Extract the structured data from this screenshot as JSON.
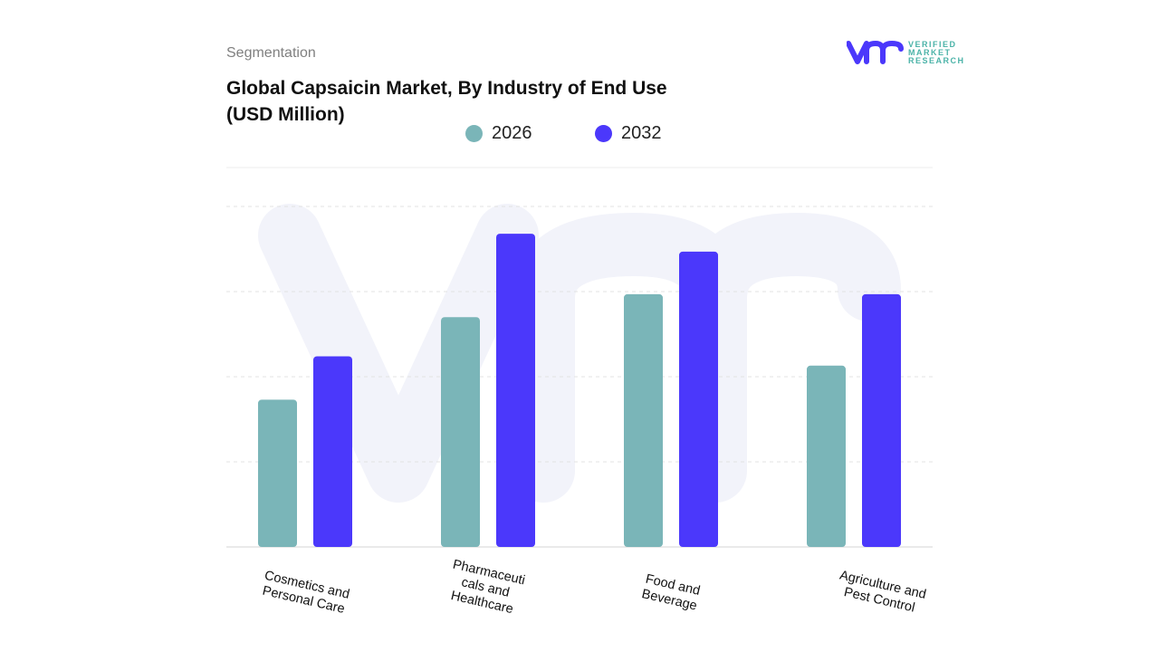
{
  "header": {
    "segment": "Segmentation",
    "title": "Global Capsaicin Market, By Industry of End Use (USD Million)"
  },
  "logo": {
    "text_lines": [
      "VERIFIED",
      "MARKET",
      "RESEARCH"
    ]
  },
  "chart_data": {
    "type": "bar",
    "title": "Global Capsaicin Market, By Industry of End Use (USD Million)",
    "categories": [
      "Cosmetics and Personal Care",
      "Pharmaceuticals and Healthcare",
      "Food and Beverage",
      "Agriculture and Pest Control"
    ],
    "category_labels": [
      [
        "Cosmetics and",
        "Personal Care"
      ],
      [
        "Pharmaceuti",
        "cals and",
        "Healthcare"
      ],
      [
        "Food and",
        "Beverage"
      ],
      [
        "Agriculture and",
        "Pest Control"
      ]
    ],
    "series": [
      {
        "name": "2026",
        "color": "#7ab5b8",
        "values": [
          1.73,
          2.7,
          2.97,
          2.13
        ]
      },
      {
        "name": "2032",
        "color": "#4b38fb",
        "values": [
          2.24,
          3.68,
          3.47,
          2.97
        ]
      }
    ],
    "ylim": [
      0,
      4
    ],
    "grid": true,
    "legend": "top-center",
    "y_ticks_shown": false
  }
}
